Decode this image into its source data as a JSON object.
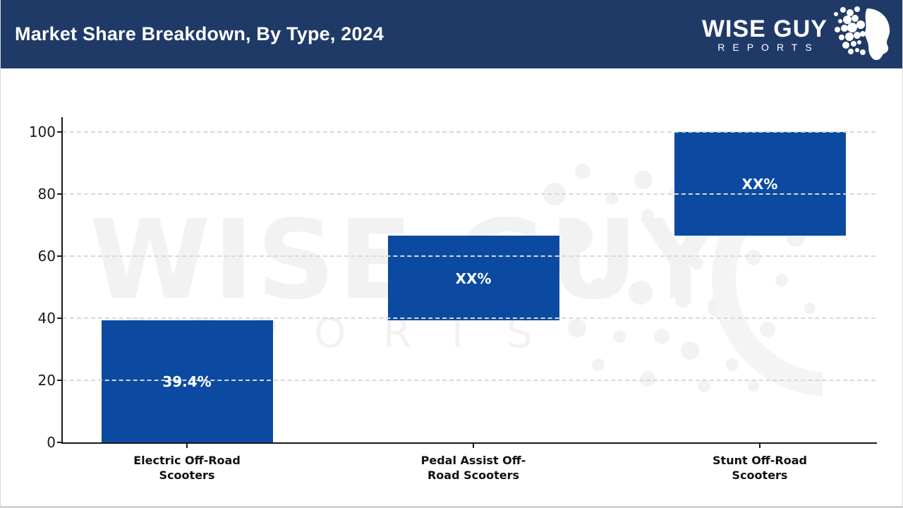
{
  "header": {
    "title": "Market Share Breakdown, By Type, 2024",
    "bg_color": "#203a68",
    "logo": {
      "line1": "WISE GUY",
      "line2": "REPORTS"
    }
  },
  "watermark": {
    "line1": "WISE GUY",
    "line2": "REPORTS"
  },
  "chart_data": {
    "type": "bar",
    "subtype": "waterfall",
    "title": "Market Share Breakdown, By Type, 2024",
    "categories": [
      [
        "Electric Off-Road",
        "Scooters"
      ],
      [
        "Pedal Assist Off-",
        "Road Scooters"
      ],
      [
        "Stunt Off-Road",
        "Scooters"
      ]
    ],
    "series": [
      {
        "name": "Market share (%)",
        "segments": [
          {
            "category": "Electric Off-Road Scooters",
            "start": 0,
            "end": 39.4,
            "label": "39.4%"
          },
          {
            "category": "Pedal Assist Off-Road Scooters",
            "start": 39.4,
            "end": 66.6,
            "label": "XX%"
          },
          {
            "category": "Stunt Off-Road Scooters",
            "start": 66.6,
            "end": 100,
            "label": "XX%"
          }
        ]
      }
    ],
    "ylim": [
      0,
      100
    ],
    "yticks": [
      0,
      20,
      40,
      60,
      80,
      100
    ],
    "xlabel": "",
    "ylabel": "",
    "grid": "dashed-horizontal",
    "legend": "none",
    "bar_color": "#0b4aa0",
    "bar_label_color": "#ffffff",
    "gridline_color": "#d8d8d8",
    "watermark_color": "#f2f2f2"
  }
}
